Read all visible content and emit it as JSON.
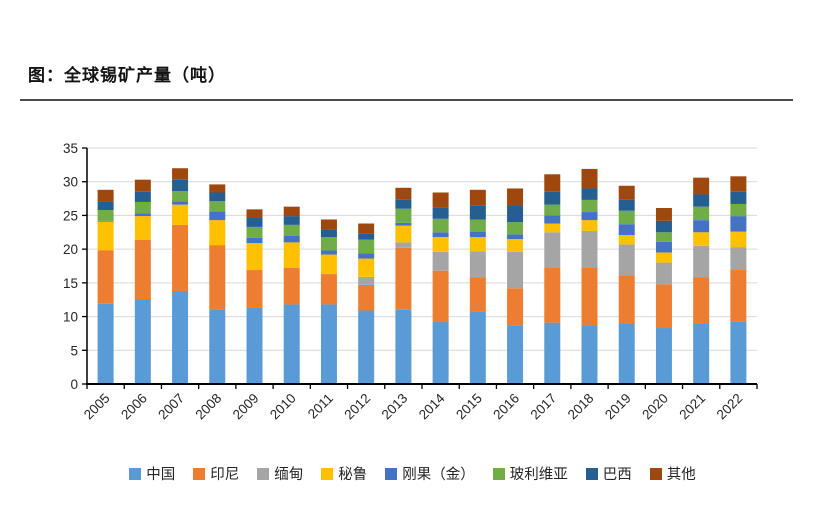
{
  "title": "图：全球锡矿产量（吨）",
  "chart_data": {
    "type": "bar",
    "stacked": true,
    "title": "图：全球锡矿产量（吨）",
    "xlabel": "",
    "ylabel": "",
    "ylim": [
      0,
      35
    ],
    "yticks": [
      0,
      5,
      10,
      15,
      20,
      25,
      30,
      35
    ],
    "grid": "horizontal",
    "legend_position": "bottom",
    "axis_color": "#000000",
    "grid_color": "#d9d9d9",
    "categories": [
      "2005",
      "2006",
      "2007",
      "2008",
      "2009",
      "2010",
      "2011",
      "2012",
      "2013",
      "2014",
      "2015",
      "2016",
      "2017",
      "2018",
      "2019",
      "2020",
      "2021",
      "2022"
    ],
    "series": [
      {
        "key": "china",
        "name": "中国",
        "color": "#5b9bd5",
        "values": [
          11.9,
          12.6,
          13.8,
          11.1,
          11.4,
          11.8,
          11.8,
          10.9,
          11.0,
          9.2,
          10.8,
          8.7,
          9.1,
          8.6,
          8.9,
          8.3,
          8.9,
          9.3
        ]
      },
      {
        "key": "indonesia",
        "name": "印尼",
        "color": "#ed7d31",
        "values": [
          7.9,
          8.8,
          9.8,
          9.5,
          5.5,
          5.4,
          4.5,
          3.8,
          9.2,
          7.6,
          5.0,
          5.5,
          8.1,
          8.6,
          7.2,
          6.5,
          6.9,
          7.6
        ]
      },
      {
        "key": "myanmar",
        "name": "缅甸",
        "color": "#a5a5a5",
        "values": [
          0,
          0,
          0,
          0,
          0,
          0,
          0,
          1.2,
          0.8,
          2.8,
          3.9,
          5.4,
          5.3,
          5.5,
          4.6,
          3.2,
          4.7,
          3.4
        ]
      },
      {
        "key": "peru",
        "name": "秘鲁",
        "color": "#ffc000",
        "values": [
          4.3,
          3.5,
          3.0,
          3.7,
          4.0,
          3.8,
          2.9,
          2.7,
          2.5,
          2.2,
          2.1,
          1.9,
          1.3,
          1.6,
          1.4,
          1.5,
          2.0,
          2.3
        ]
      },
      {
        "key": "drcongo",
        "name": "刚果（金）",
        "color": "#4472c4",
        "values": [
          0.1,
          0.4,
          0.5,
          1.3,
          0.8,
          1.0,
          0.6,
          0.8,
          0.4,
          0.7,
          0.8,
          0.7,
          1.2,
          1.2,
          1.6,
          1.6,
          1.8,
          2.3
        ]
      },
      {
        "key": "bolivia",
        "name": "玻利维亚",
        "color": "#70ad47",
        "values": [
          1.6,
          1.7,
          1.5,
          1.5,
          1.6,
          1.6,
          2.0,
          2.0,
          2.1,
          2.0,
          1.8,
          1.8,
          1.6,
          1.8,
          2.0,
          1.4,
          2.0,
          1.8
        ]
      },
      {
        "key": "brazil",
        "name": "巴西",
        "color": "#255e91",
        "values": [
          1.2,
          1.5,
          1.7,
          1.3,
          1.4,
          1.3,
          1.1,
          0.9,
          1.4,
          1.7,
          2.1,
          2.4,
          1.9,
          1.7,
          1.7,
          1.7,
          1.8,
          1.8
        ]
      },
      {
        "key": "others",
        "name": "其他",
        "color": "#9e480e",
        "values": [
          1.8,
          1.8,
          1.7,
          1.2,
          1.2,
          1.4,
          1.5,
          1.5,
          1.7,
          2.2,
          2.3,
          2.6,
          2.6,
          2.9,
          2.0,
          1.9,
          2.5,
          2.3
        ]
      }
    ]
  }
}
